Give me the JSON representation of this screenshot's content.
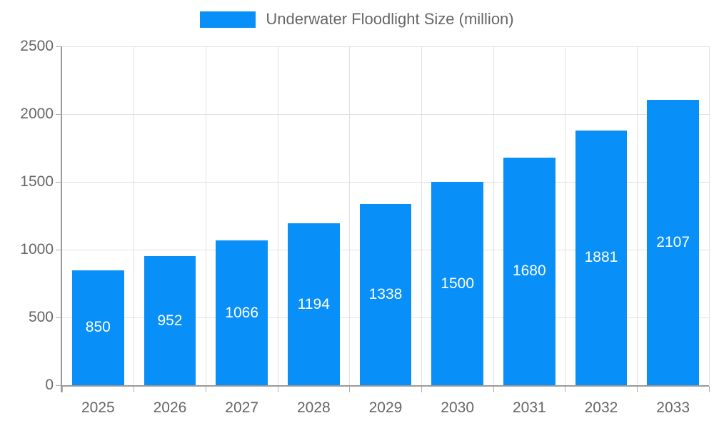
{
  "legend": {
    "label": "Underwater Floodlight Size (million)"
  },
  "chart_data": {
    "type": "bar",
    "title": "Underwater Floodlight Size (million)",
    "series_name": "Underwater Floodlight Size (million)",
    "categories": [
      "2025",
      "2026",
      "2027",
      "2028",
      "2029",
      "2030",
      "2031",
      "2032",
      "2033"
    ],
    "values": [
      850,
      952,
      1066,
      1194,
      1338,
      1500,
      1680,
      1881,
      2107
    ],
    "xlabel": "",
    "ylabel": "",
    "ylim": [
      0,
      2500
    ],
    "yticks": [
      0,
      500,
      1000,
      1500,
      2000,
      2500
    ],
    "grid": true,
    "legend_position": "top",
    "bar_color": "#0990f8",
    "value_label_color": "#ffffff",
    "axis_text_color": "#666666",
    "grid_color": "#e2e2e2",
    "axis_line_color": "#9a9a9a",
    "tick_color": "#b0b0b0"
  }
}
